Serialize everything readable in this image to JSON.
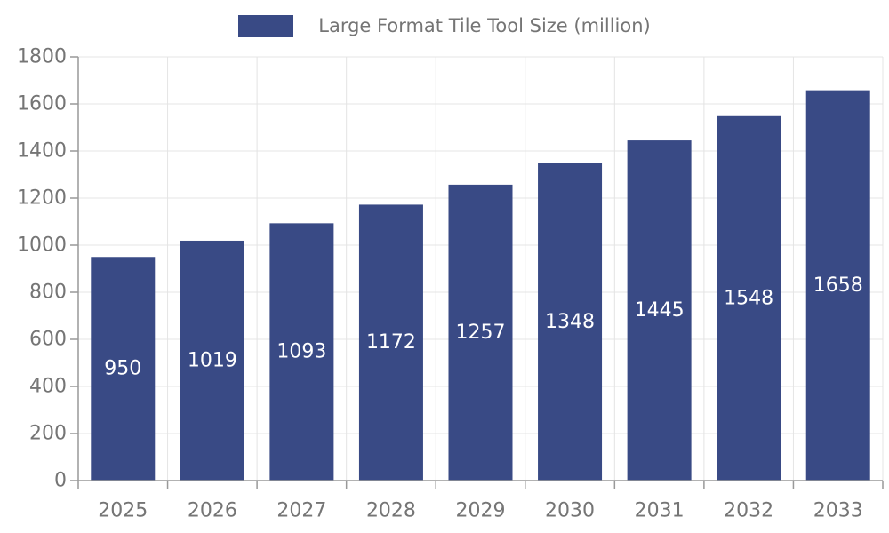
{
  "chart_data": {
    "type": "bar",
    "title": "",
    "legend": [
      "Large Format Tile Tool Size (million)"
    ],
    "legend_position": "top-center",
    "categories": [
      "2025",
      "2026",
      "2027",
      "2028",
      "2029",
      "2030",
      "2031",
      "2032",
      "2033"
    ],
    "series": [
      {
        "name": "Large Format Tile Tool Size (million)",
        "values": [
          950,
          1019,
          1093,
          1172,
          1257,
          1348,
          1445,
          1548,
          1658
        ]
      }
    ],
    "xlabel": "",
    "ylabel": "",
    "ylim": [
      0,
      1800
    ],
    "ytick_step": 200,
    "ytick_labels": [
      "0",
      "200",
      "400",
      "600",
      "800",
      "1000",
      "1200",
      "1400",
      "1600",
      "1800"
    ],
    "grid": true,
    "grid_vertical": true,
    "bar_value_labels": "inside-center",
    "colors": {
      "bar": "#394a85",
      "bar_label": "#ffffff",
      "axis_line": "#999999",
      "gridline": "#e4e4e4",
      "tick_label": "#757575",
      "legend_text": "#757575",
      "background": "#ffffff"
    }
  }
}
